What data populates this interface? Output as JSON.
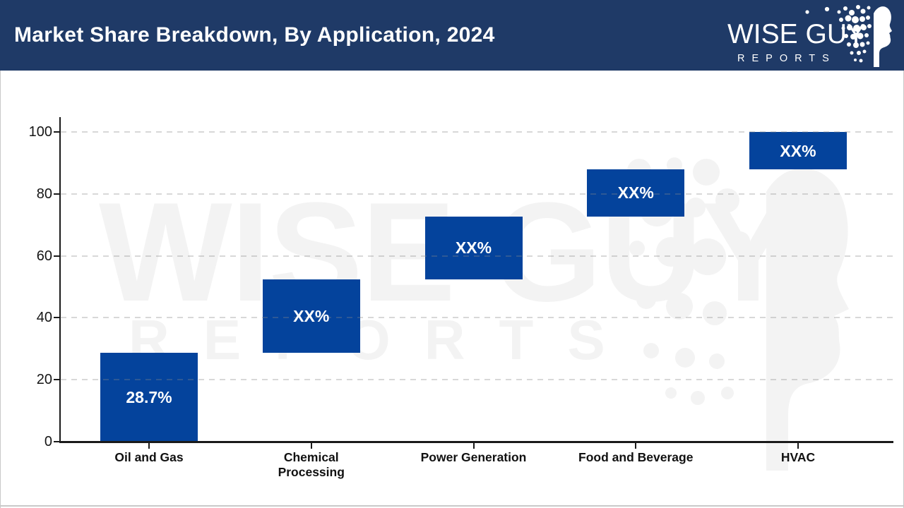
{
  "header": {
    "title": "Market Share Breakdown, By Application, 2024",
    "logo": {
      "line1": "WISE GUY",
      "line2": "REPORTS"
    }
  },
  "watermark": {
    "line1": "WISE GUY",
    "line2": "REPORTS"
  },
  "colors": {
    "header_bg": "#1f3a67",
    "bar_blue": "#04439c",
    "axis_black": "#1a1a1a",
    "grid_gray": "#d9d9d9",
    "bar_label_white": "#ffffff",
    "watermark_gray": "#f3f3f3"
  },
  "chart_data": {
    "type": "bar",
    "subtype": "waterfall-floating-bars",
    "title": "Market Share Breakdown, By Application, 2024",
    "xlabel": "",
    "ylabel": "",
    "ylim": [
      0,
      100
    ],
    "grid": "dashed-horizontal",
    "legend": "none",
    "categories": [
      "Oil and Gas",
      "Chemical Processing",
      "Power Generation",
      "Food and Beverage",
      "HVAC"
    ],
    "y_ticks": [
      0,
      20,
      40,
      60,
      80,
      100
    ],
    "segments": [
      {
        "category": "Oil and Gas",
        "label_lines": [
          "Oil and Gas"
        ],
        "start": 0,
        "end": 28.7,
        "value_label": "28.7%"
      },
      {
        "category": "Chemical Processing",
        "label_lines": [
          "Chemical",
          "Processing"
        ],
        "start": 28.7,
        "end": 52.4,
        "value_label": "XX%"
      },
      {
        "category": "Power Generation",
        "label_lines": [
          "Power Generation"
        ],
        "start": 52.4,
        "end": 72.7,
        "value_label": "XX%"
      },
      {
        "category": "Food and Beverage",
        "label_lines": [
          "Food and Beverage"
        ],
        "start": 72.7,
        "end": 87.9,
        "value_label": "XX%"
      },
      {
        "category": "HVAC",
        "label_lines": [
          "HVAC"
        ],
        "start": 87.9,
        "end": 100,
        "value_label": "XX%"
      }
    ]
  }
}
